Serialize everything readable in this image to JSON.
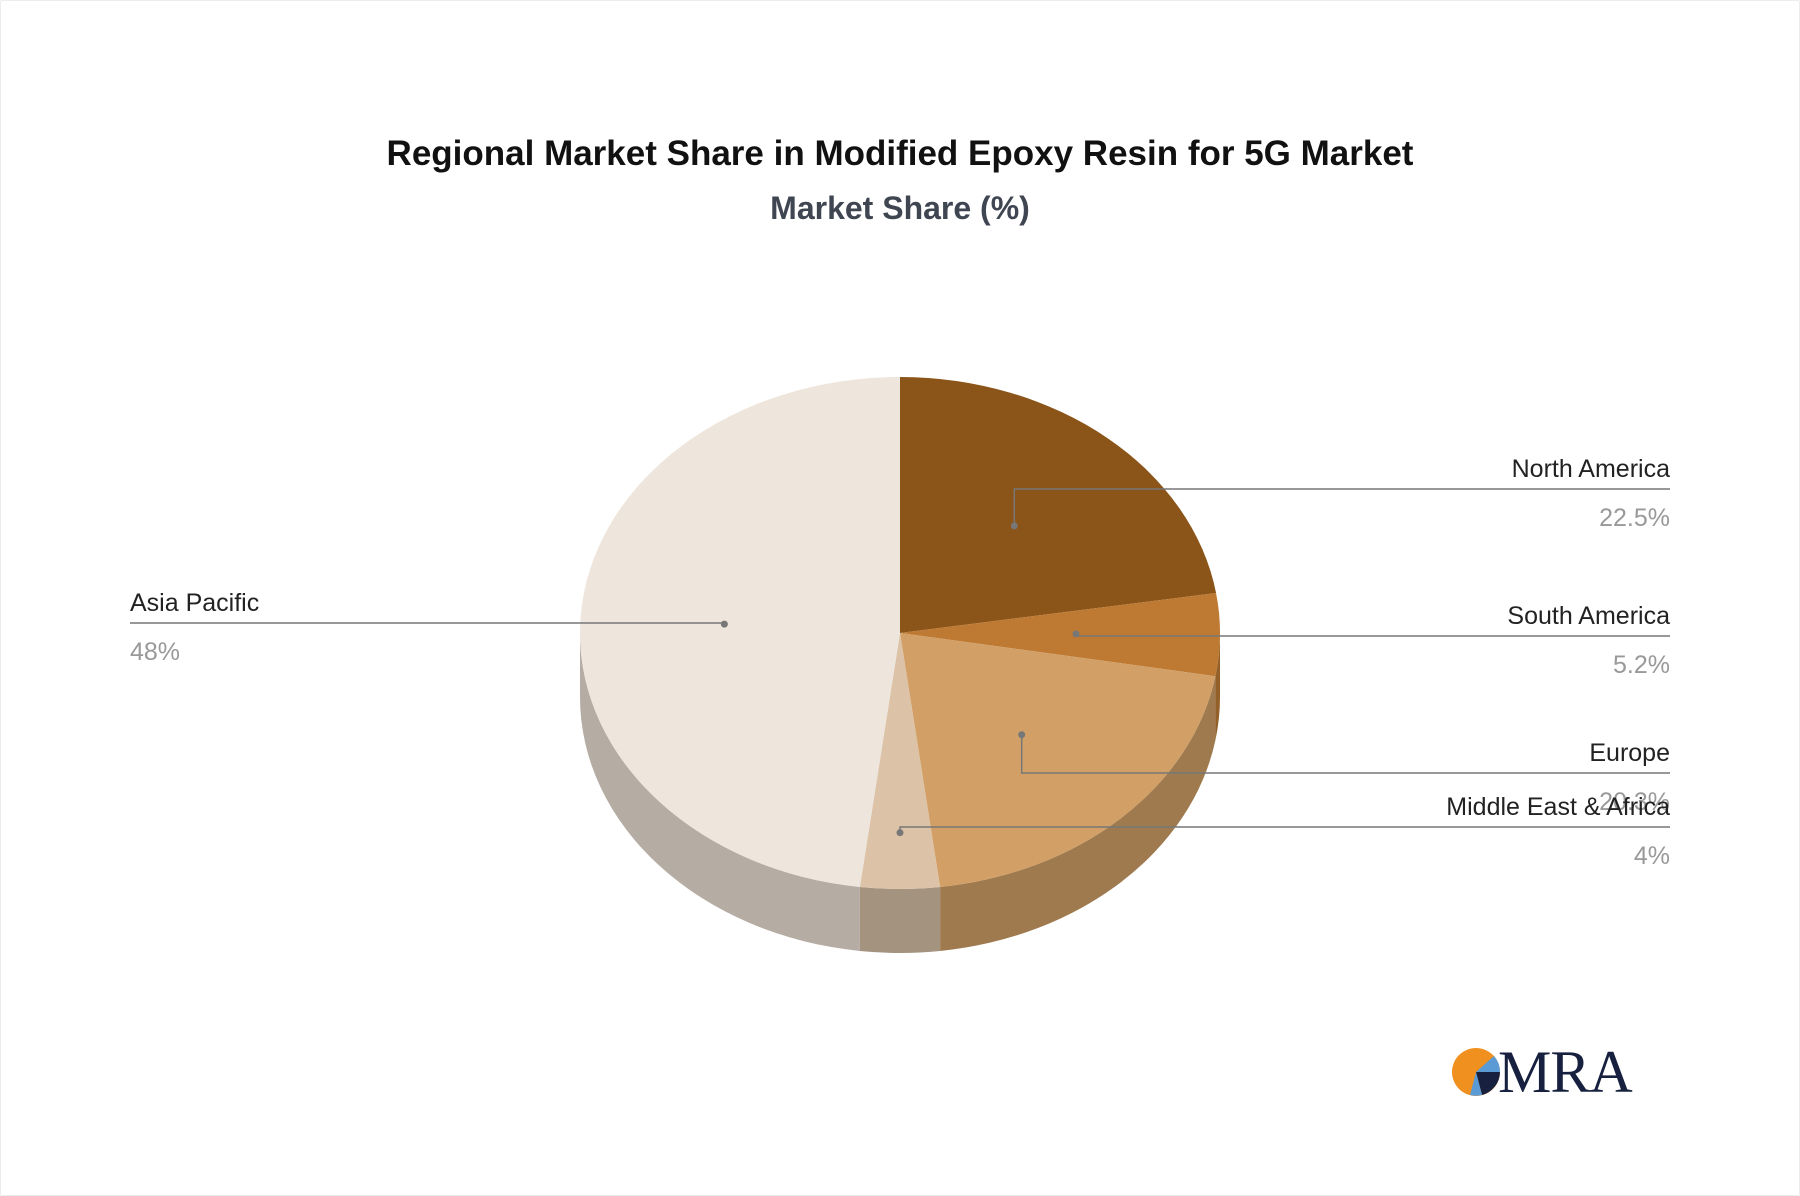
{
  "chart_data": {
    "type": "pie",
    "title": "Regional Market Share in Modified Epoxy Resin for 5G Market",
    "subtitle": "Market Share (%)",
    "slices": [
      {
        "label": "North America",
        "value": 22.5,
        "display": "22.5%",
        "color": "#8b5418",
        "side": "#6b4012"
      },
      {
        "label": "South America",
        "value": 5.2,
        "display": "5.2%",
        "color": "#be7a33",
        "side": "#94602a"
      },
      {
        "label": "Europe",
        "value": 20.3,
        "display": "20.3%",
        "color": "#d2a066",
        "side": "#9e7a4e"
      },
      {
        "label": "Middle East & Africa",
        "value": 4,
        "display": "4%",
        "color": "#dcc3a7",
        "side": "#a4937f"
      },
      {
        "label": "Asia Pacific",
        "value": 48,
        "display": "48%",
        "color": "#eee5dc",
        "side": "#b5aca4"
      }
    ]
  },
  "branding": {
    "logo_text": "MRA",
    "logo_colors": {
      "orange": "#f0901e",
      "navy": "#17213f",
      "blue": "#5b9bd5"
    }
  }
}
